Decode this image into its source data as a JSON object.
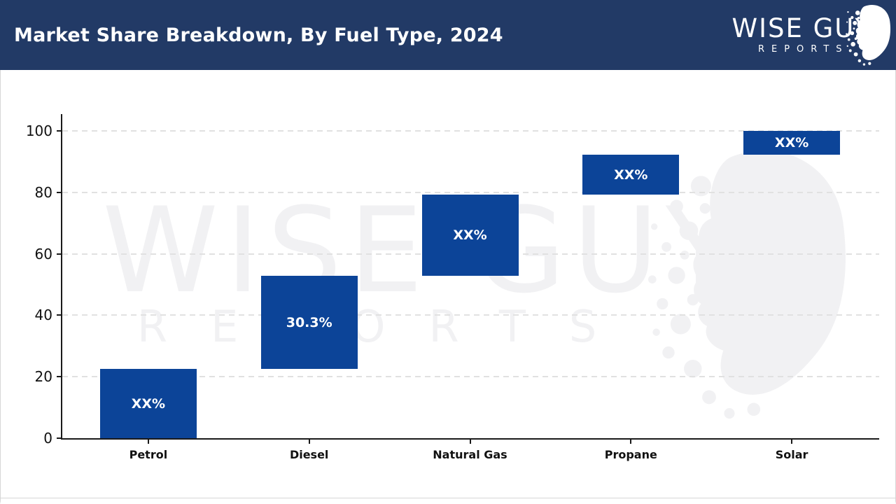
{
  "header": {
    "title": "Market Share Breakdown, By Fuel Type, 2024",
    "logo": {
      "line1": "WISE GUY",
      "line2": "REPORTS"
    }
  },
  "watermark": {
    "line1": "WISE GUY",
    "line2": "REPORTS"
  },
  "colors": {
    "header_bg": "#223a66",
    "bar": "#0c4498",
    "bar_label": "#ffffff",
    "grid": "#e1e1e1",
    "axis": "#1a1a1a",
    "watermark": "#f1f1f3"
  },
  "chart_data": {
    "type": "bar",
    "subtype": "waterfall",
    "title": "Market Share Breakdown, By Fuel Type, 2024",
    "xlabel": "",
    "ylabel": "",
    "categories": [
      "Petrol",
      "Diesel",
      "Natural Gas",
      "Propane",
      "Solar"
    ],
    "segments": [
      {
        "category": "Petrol",
        "start": 0,
        "end": 22.5,
        "size": 22.5,
        "label": "XX%"
      },
      {
        "category": "Diesel",
        "start": 22.5,
        "end": 52.8,
        "size": 30.3,
        "label": "30.3%"
      },
      {
        "category": "Natural Gas",
        "start": 52.8,
        "end": 79.2,
        "size": 26.4,
        "label": "XX%"
      },
      {
        "category": "Propane",
        "start": 79.2,
        "end": 92.2,
        "size": 13.0,
        "label": "XX%"
      },
      {
        "category": "Solar",
        "start": 92.2,
        "end": 100.0,
        "size": 7.8,
        "label": "XX%"
      }
    ],
    "yticks": [
      0,
      20,
      40,
      60,
      80,
      100
    ],
    "ylim": [
      0,
      105.5
    ],
    "grid": "dashed-horizontal",
    "legend": "none"
  }
}
